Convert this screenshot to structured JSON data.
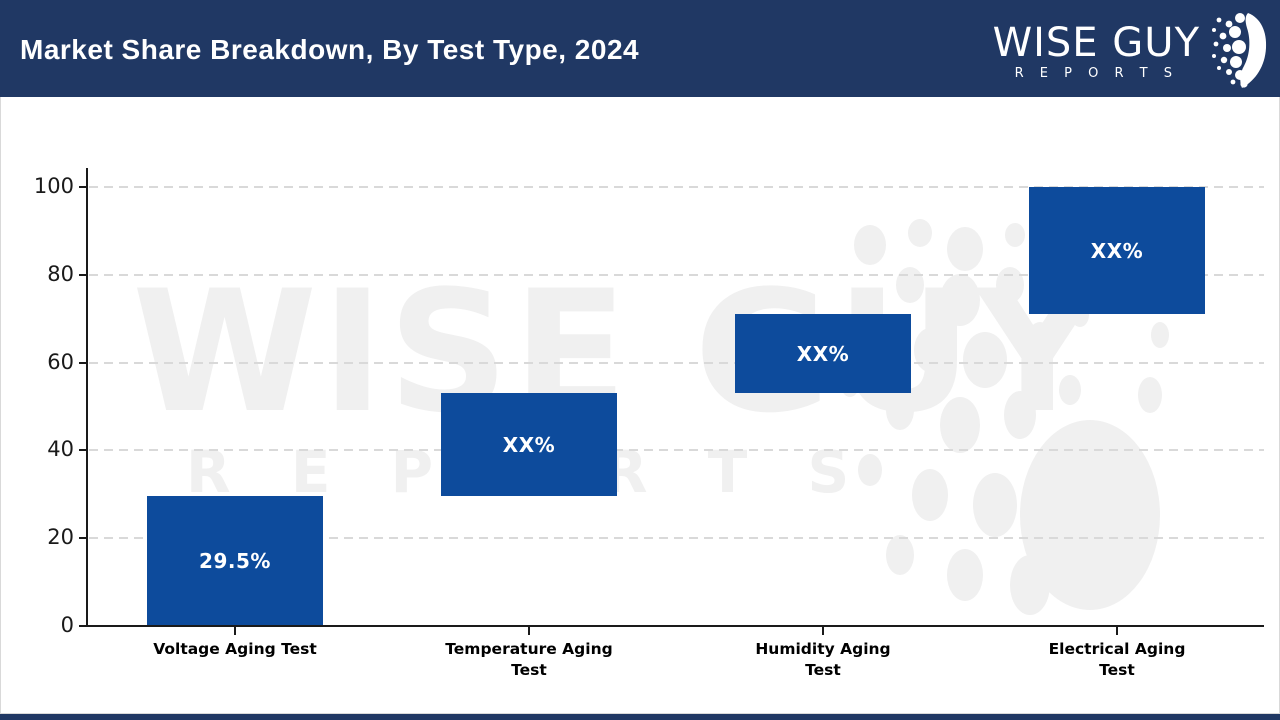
{
  "header": {
    "title": "Market Share Breakdown, By Test Type, 2024",
    "logo": {
      "brand_line1": "WISE GUY",
      "brand_line2": "R E P O R T S"
    }
  },
  "watermark": {
    "line1": "WISE GUY",
    "line2": "R E P O R T S"
  },
  "colors": {
    "header_bg": "#203864",
    "bar_fill": "#0d4b9c",
    "bar_label": "#ffffff",
    "grid_line": "#d9d9d9",
    "axis": "#1a1a1a",
    "watermark": "#f0f0f0",
    "background": "#ffffff"
  },
  "chart_data": {
    "type": "bar",
    "subtype": "floating-waterfall",
    "title": "Market Share Breakdown, By Test Type, 2024",
    "categories": [
      "Voltage Aging Test",
      "Temperature Aging Test",
      "Humidity Aging Test",
      "Electrical Aging Test"
    ],
    "category_label_lines": [
      [
        "Voltage Aging Test"
      ],
      [
        "Temperature Aging",
        "Test"
      ],
      [
        "Humidity Aging",
        "Test"
      ],
      [
        "Electrical Aging",
        "Test"
      ]
    ],
    "bars": [
      {
        "category": "Voltage Aging Test",
        "start": 0,
        "end": 29.5,
        "value": 29.5,
        "label": "29.5%"
      },
      {
        "category": "Temperature Aging Test",
        "start": 29.5,
        "end": 53,
        "value": 23.5,
        "label": "XX%"
      },
      {
        "category": "Humidity Aging Test",
        "start": 53,
        "end": 71,
        "value": 18,
        "label": "XX%"
      },
      {
        "category": "Electrical Aging Test",
        "start": 71,
        "end": 100,
        "value": 29,
        "label": "XX%"
      }
    ],
    "xlabel": "",
    "ylabel": "",
    "ylim": [
      0,
      100
    ],
    "yticks": [
      0,
      20,
      40,
      60,
      80,
      100
    ],
    "grid": "horizontal-dashed",
    "legend": "none",
    "units": "percent market share"
  }
}
